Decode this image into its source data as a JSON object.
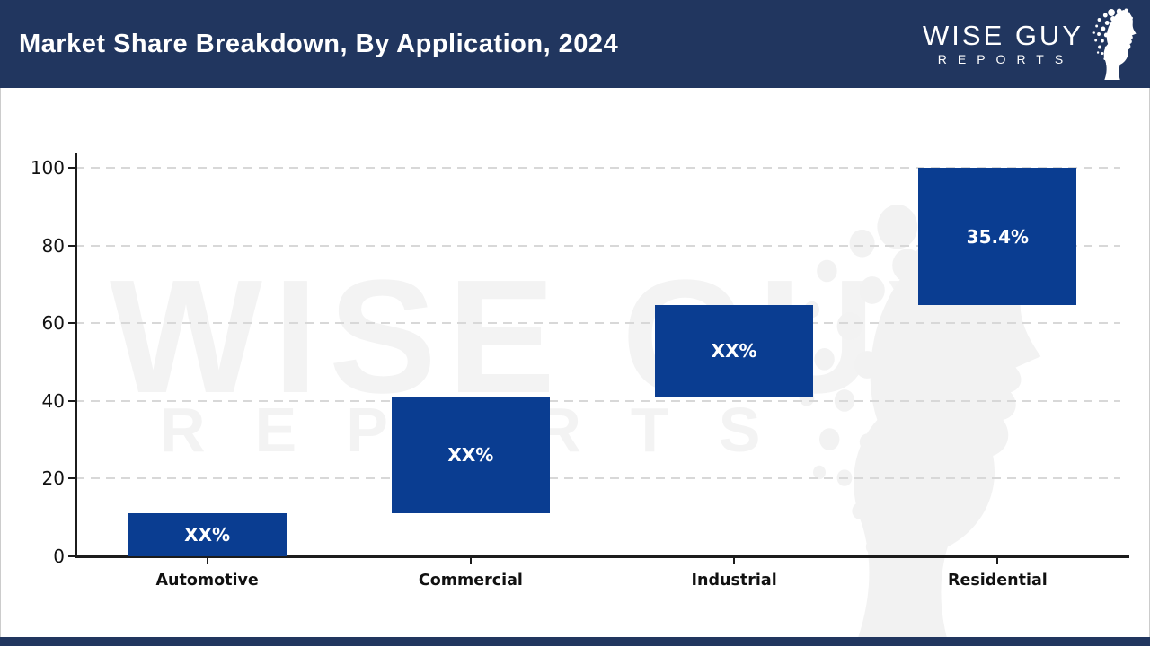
{
  "header": {
    "title": "Market Share Breakdown, By Application, 2024",
    "logo": {
      "line1": "WISE GUY",
      "line2": "REPORTS"
    }
  },
  "watermark": {
    "line1": "WISE GUY",
    "line2": "REPORTS"
  },
  "colors": {
    "header_bg": "#21365f",
    "bar_blue": "#0a3d91",
    "watermark_gray": "#f2f2f2"
  },
  "chart_data": {
    "type": "bar",
    "subtype": "floating-waterfall",
    "title": "Market Share Breakdown, By Application, 2024",
    "xlabel": "",
    "ylabel": "",
    "categories": [
      "Automotive",
      "Commercial",
      "Industrial",
      "Residential"
    ],
    "segments": [
      {
        "category": "Automotive",
        "start": 0,
        "end": 11,
        "label": "XX%"
      },
      {
        "category": "Commercial",
        "start": 11,
        "end": 41,
        "label": "XX%"
      },
      {
        "category": "Industrial",
        "start": 41,
        "end": 64.6,
        "label": "XX%"
      },
      {
        "category": "Residential",
        "start": 64.6,
        "end": 100,
        "label": "35.4%"
      }
    ],
    "y_ticks": [
      0,
      20,
      40,
      60,
      80,
      100
    ],
    "ylim": [
      0,
      100
    ],
    "bar_color": "#0a3d91",
    "grid": "horizontal-dashed",
    "legend": "none"
  }
}
